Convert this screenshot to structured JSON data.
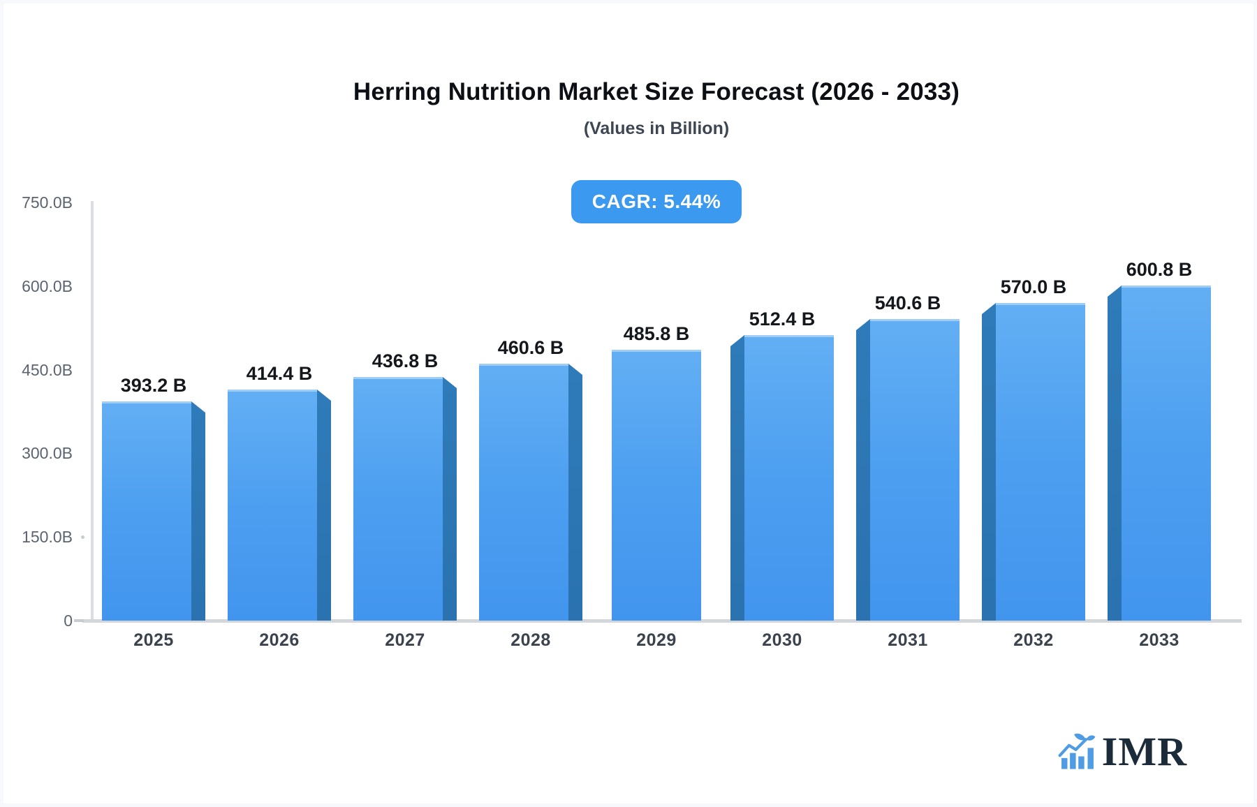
{
  "header": {
    "title": "Herring Nutrition Market Size Forecast (2026 - 2033)",
    "subtitle": "(Values in Billion)",
    "badge": "CAGR: 5.44%"
  },
  "footer": {
    "brand": "IMR"
  },
  "colors": {
    "accent": "#3b99f0",
    "bar_face_top": "#63aff4",
    "bar_face_bottom": "#4295ee",
    "bar_side": "#2b76b5",
    "axis_line": "#dadde2",
    "baseline": "#d3d6db",
    "title_text": "#0c0f14",
    "tick_text": "#5b6470",
    "brand_navy": "#1c2b39"
  },
  "chart_data": {
    "type": "bar",
    "title": "Herring Nutrition Market Size Forecast (2026 - 2033)",
    "subtitle": "(Values in Billion)",
    "cagr": "5.44%",
    "unit": "Billion",
    "categories": [
      "2025",
      "2026",
      "2027",
      "2028",
      "2029",
      "2030",
      "2031",
      "2032",
      "2033"
    ],
    "values": [
      393.2,
      414.4,
      436.8,
      460.6,
      485.8,
      512.4,
      540.6,
      570.0,
      600.8
    ],
    "value_labels": [
      "393.2 B",
      "414.4 B",
      "436.8 B",
      "460.6 B",
      "485.8 B",
      "512.4 B",
      "540.6 B",
      "570.0 B",
      "600.8 B"
    ],
    "ylim": [
      0,
      750
    ],
    "y_ticks": [
      {
        "label": "750.0B",
        "value": 750,
        "mark": "none"
      },
      {
        "label": "600.0B",
        "value": 600,
        "mark": "none"
      },
      {
        "label": "450.0B",
        "value": 450,
        "mark": "none"
      },
      {
        "label": "300.0B",
        "value": 300,
        "mark": "none"
      },
      {
        "label": "150.0B",
        "value": 150,
        "mark": "dot"
      },
      {
        "label": "0",
        "value": 0,
        "mark": "dash"
      }
    ],
    "grid": false,
    "legend": false
  }
}
